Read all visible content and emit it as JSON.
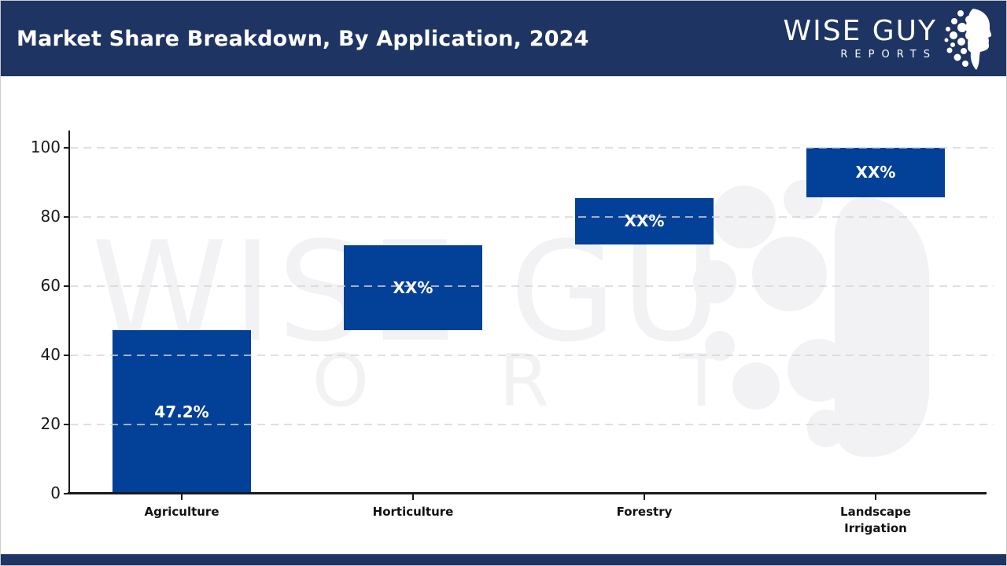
{
  "header": {
    "title": "Market Share Breakdown, By Application, 2024",
    "logo": {
      "line1": "WISE GUY",
      "line2": "REPORTS"
    }
  },
  "watermark": {
    "line1": "WISE GU",
    "line2": "P O R T S"
  },
  "colors": {
    "header_bg": "#1e3462",
    "bar_blue": "#034098",
    "grid_gray": "#d5d5d5",
    "axis_black": "#1a1a1a",
    "bar_label_white": "#ffffff"
  },
  "chart_data": {
    "type": "bar",
    "subtype": "waterfall",
    "title": "Market Share Breakdown, By Application, 2024",
    "categories": [
      "Agriculture",
      "Horticulture",
      "Forestry",
      "Landscape Irrigation"
    ],
    "segments": [
      {
        "category": "Agriculture",
        "start": 0,
        "end": 47.2,
        "label": "47.2%"
      },
      {
        "category": "Horticulture",
        "start": 47.2,
        "end": 71.8,
        "label": "XX%"
      },
      {
        "category": "Forestry",
        "start": 72.0,
        "end": 85.5,
        "label": "XX%"
      },
      {
        "category": "Landscape Irrigation",
        "start": 85.7,
        "end": 100,
        "label": "XX%"
      }
    ],
    "ylim": [
      0,
      100
    ],
    "yticks": [
      0,
      20,
      40,
      60,
      80,
      100
    ],
    "grid": "horizontal-dashed-over-bars",
    "legend": "none",
    "bar_color": "#034098",
    "value_label_color": "#ffffff"
  }
}
